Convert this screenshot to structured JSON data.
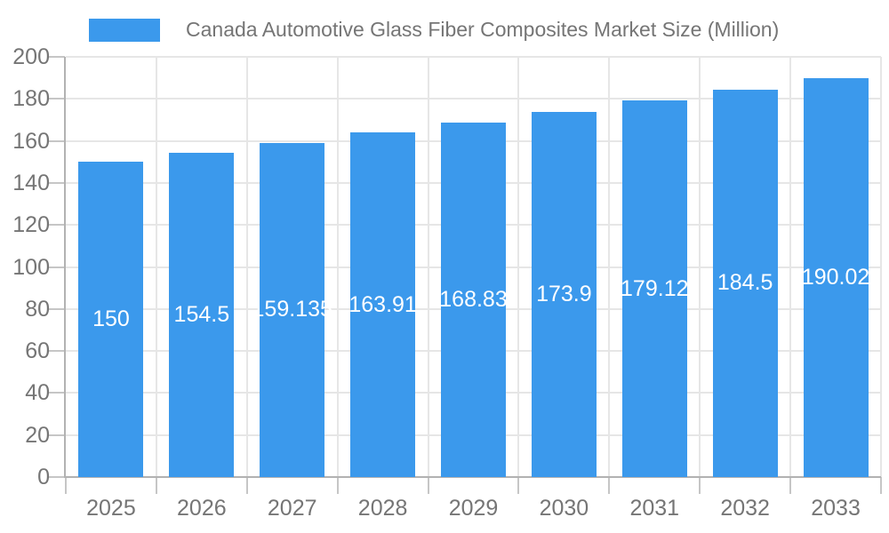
{
  "legend": {
    "label": "Canada Automotive Glass Fiber Composites Market Size (Million)"
  },
  "colors": {
    "bar": "#3B99EC",
    "axis": "#B2B2B2",
    "tick": "#C6C6C6",
    "grid": "#E6E6E6",
    "axis_text": "#757575",
    "bar_label_text": "#FFFFFF",
    "background": "#FFFFFF"
  },
  "chart_data": {
    "type": "bar",
    "title": "Canada Automotive Glass Fiber Composites Market Size (Million)",
    "categories": [
      "2025",
      "2026",
      "2027",
      "2028",
      "2029",
      "2030",
      "2031",
      "2032",
      "2033"
    ],
    "values": [
      150,
      154.5,
      159.135,
      163.91,
      168.83,
      173.9,
      179.12,
      184.5,
      190.02
    ],
    "bar_labels": [
      "150",
      "154.5",
      "159.135",
      "163.91",
      "168.83",
      "173.9",
      "179.12",
      "184.5",
      "190.02"
    ],
    "xlabel": "",
    "ylabel": "",
    "ylim": [
      0,
      200
    ],
    "ytick_step": 20,
    "yticks": [
      0,
      20,
      40,
      60,
      80,
      100,
      120,
      140,
      160,
      180,
      200
    ],
    "grid": true,
    "label_position": "inside-center",
    "legend_position": "top-left"
  }
}
